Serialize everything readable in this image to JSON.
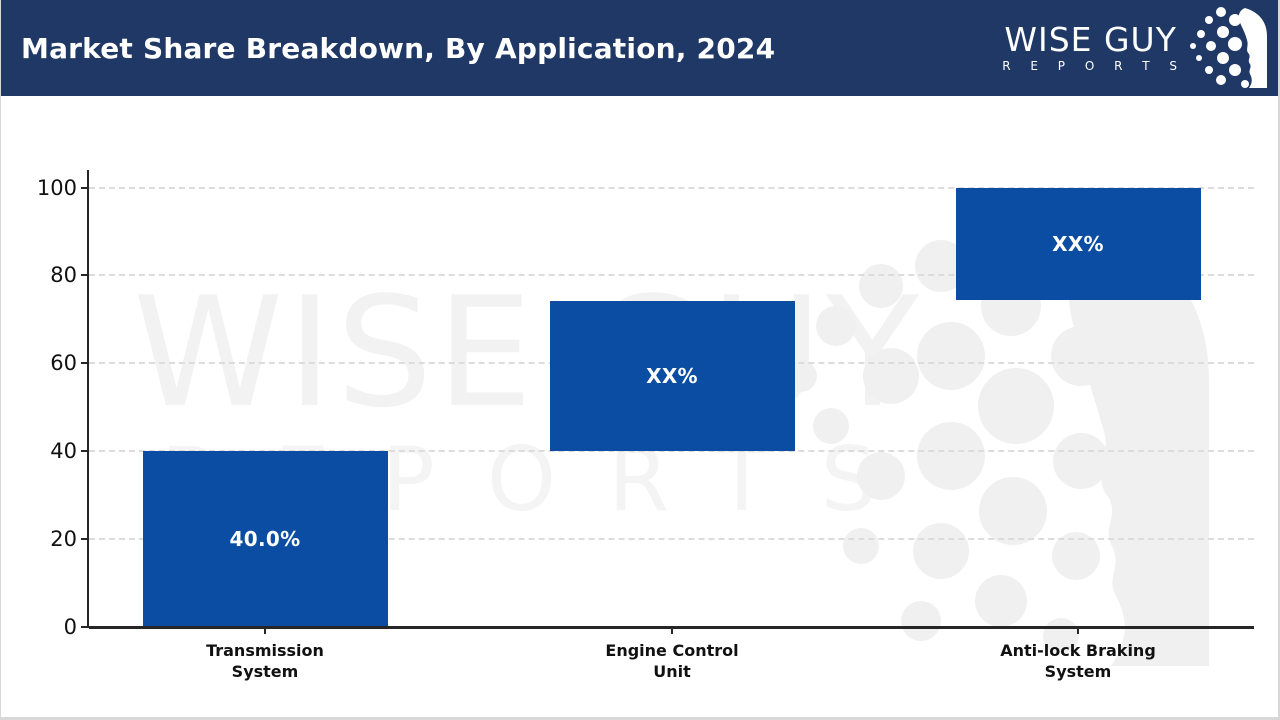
{
  "header": {
    "title": "Market Share Breakdown, By Application, 2024",
    "bg_color": "#1f3865",
    "logo": {
      "brand": "WISE GUY",
      "sub": "R E P O R T S"
    }
  },
  "watermark": {
    "line1": "WISE GUY",
    "line2": "REPORTS",
    "color": "#f2f2f2"
  },
  "chart_data": {
    "type": "bar",
    "subtype": "floating-waterfall",
    "title": "Market Share Breakdown, By Application, 2024",
    "categories": [
      "Transmission\nSystem",
      "Engine Control\nUnit",
      "Anti-lock Braking\nSystem"
    ],
    "segments": [
      {
        "category": "Transmission System",
        "start": 0,
        "end": 40,
        "label": "40.0%"
      },
      {
        "category": "Engine Control Unit",
        "start": 40,
        "end": 74.3,
        "label": "XX%"
      },
      {
        "category": "Anti-lock Braking System",
        "start": 74.3,
        "end": 100,
        "label": "XX%"
      }
    ],
    "yticks": [
      0,
      20,
      40,
      60,
      80,
      100
    ],
    "ylim": [
      0,
      104
    ],
    "grid": {
      "horizontal": true,
      "style": "dashed",
      "color": "#dcdcdc"
    },
    "bar_color": "#0b4da3",
    "bar_label_color": "#ffffff",
    "axis_color": "#262626",
    "tick_label_color": "#111111"
  }
}
